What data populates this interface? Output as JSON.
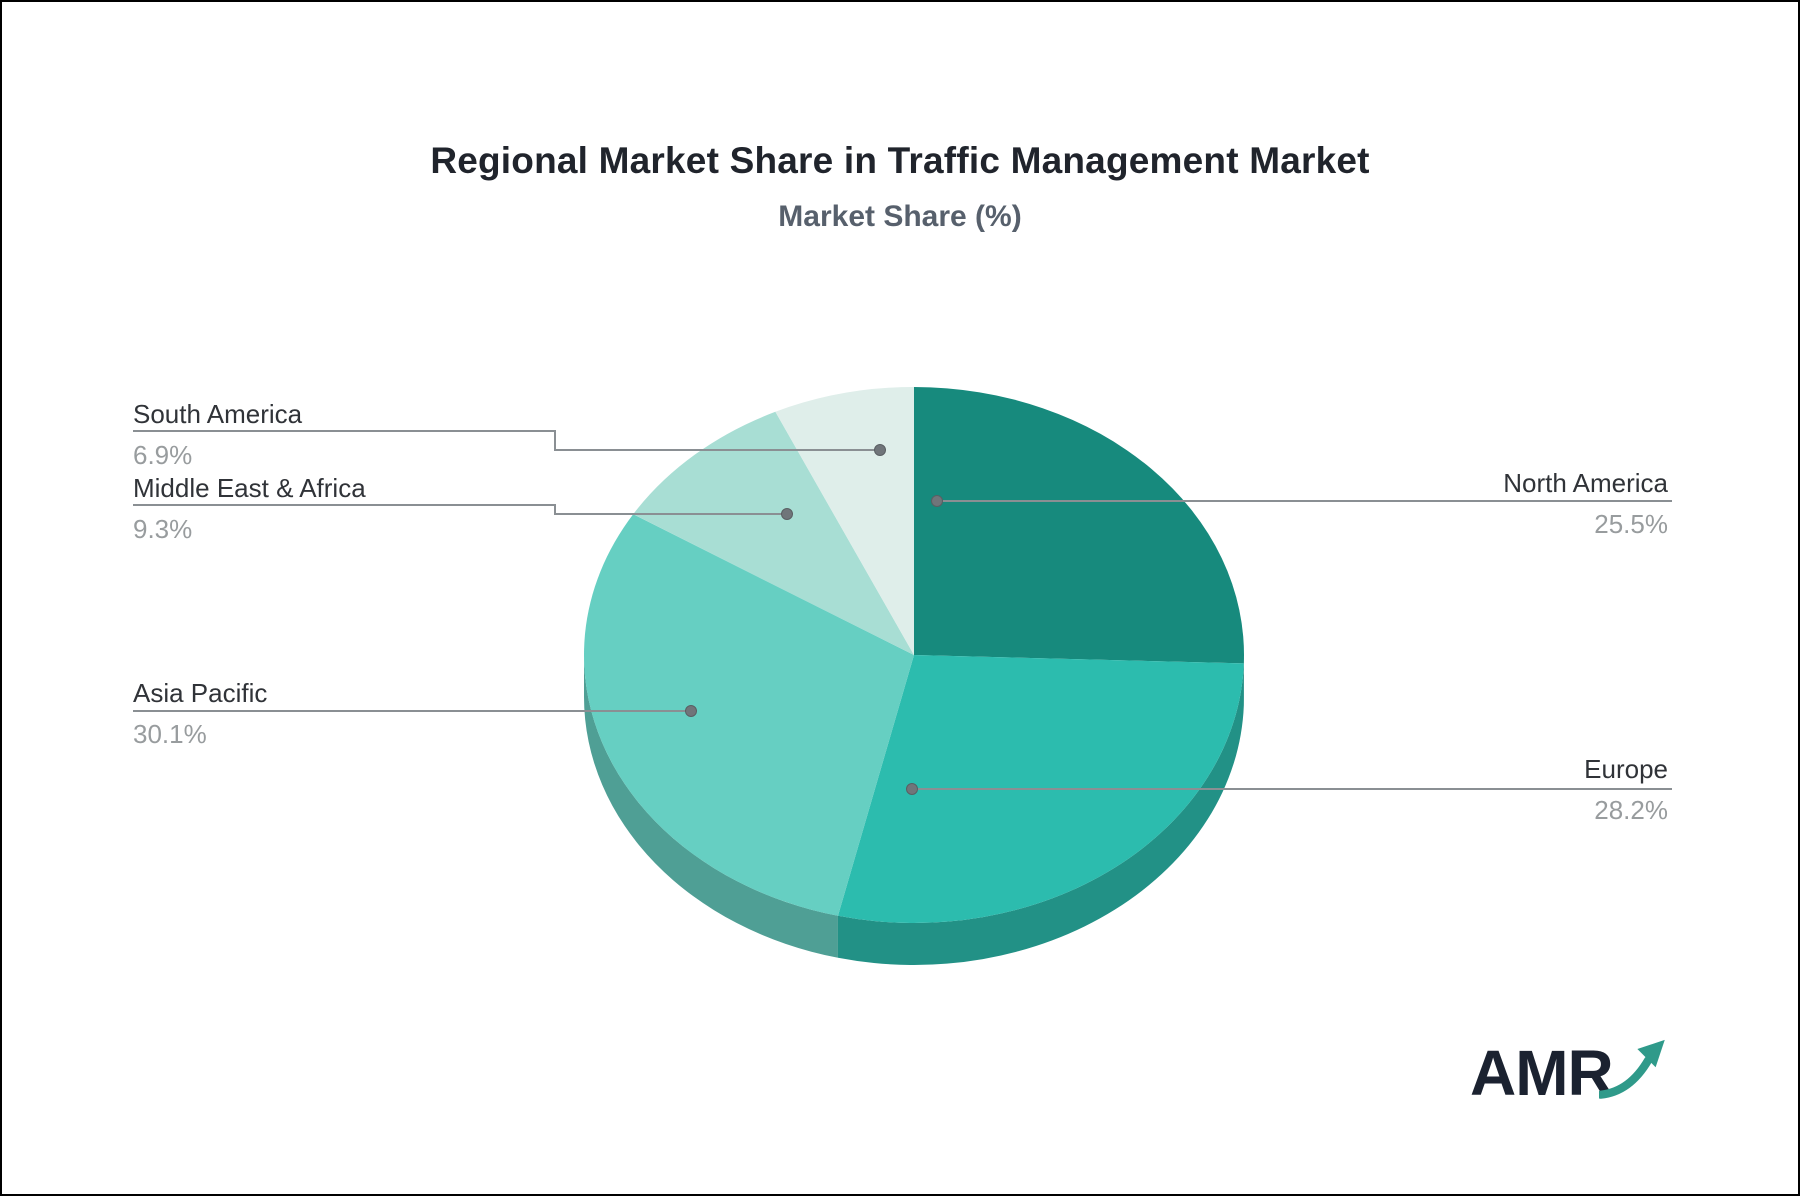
{
  "title": "Regional Market Share in Traffic Management Market",
  "subtitle": "Market Share (%)",
  "logo": {
    "text": "AMR"
  },
  "palette": {
    "leader_line": "#8a8f93",
    "leader_dot": "#70757a",
    "title_color": "#20242c",
    "subtitle_color": "#57606c",
    "value_color": "#989c9e",
    "logo_arrow": "#2f9a8a"
  },
  "chart_data": {
    "type": "pie",
    "title": "Regional Market Share in Traffic Management Market",
    "subtitle": "Market Share (%)",
    "unit": "%",
    "start_angle_deg": 0,
    "direction": "clockwise",
    "effect_3d": true,
    "slices": [
      {
        "label": "North America",
        "value": 25.5,
        "display": "25.5%",
        "color": "#178a7d"
      },
      {
        "label": "Europe",
        "value": 28.2,
        "display": "28.2%",
        "color": "#2cbcae"
      },
      {
        "label": "Asia Pacific",
        "value": 30.1,
        "display": "30.1%",
        "color": "#66cfc2"
      },
      {
        "label": "Middle East & Africa",
        "value": 9.3,
        "display": "9.3%",
        "color": "#a8ded4"
      },
      {
        "label": "South America",
        "value": 6.9,
        "display": "6.9%",
        "color": "#dfeeea"
      }
    ]
  }
}
